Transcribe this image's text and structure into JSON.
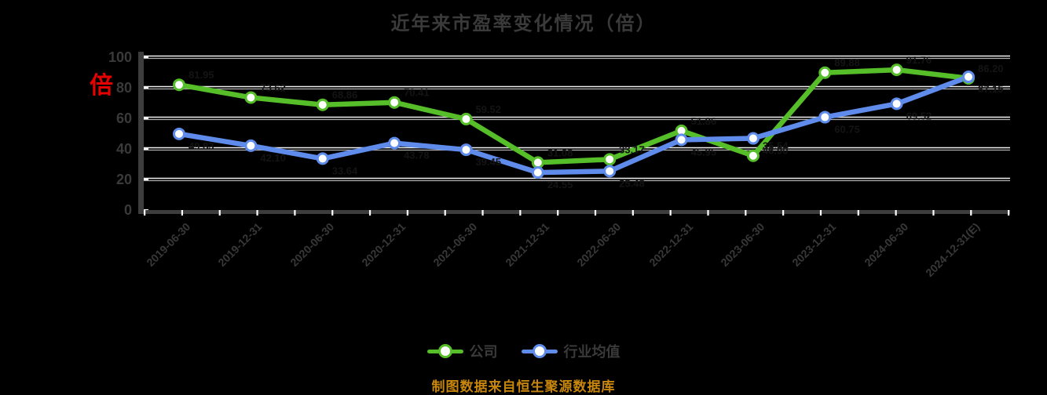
{
  "chart_data": {
    "type": "line",
    "title": "近年来市盈率变化情况（倍）",
    "y_axis_unit_label": "倍",
    "categories": [
      "2019-06-30",
      "2019-12-31",
      "2020-06-30",
      "2020-12-31",
      "2021-06-30",
      "2021-12-31",
      "2022-06-30",
      "2022-12-31",
      "2023-06-30",
      "2023-12-31",
      "2024-06-30",
      "2024-12-31(E)"
    ],
    "series": [
      {
        "name": "公司",
        "color": "#55be28",
        "values": [
          81.95,
          73.62,
          68.86,
          70.41,
          59.52,
          31.08,
          33.17,
          51.86,
          35.54,
          89.88,
          91.76,
          86.2
        ]
      },
      {
        "name": "行业均值",
        "color": "#5f8ceb",
        "values": [
          49.83,
          42.1,
          33.64,
          43.78,
          39.45,
          24.55,
          25.48,
          45.95,
          46.9,
          60.75,
          69.52,
          87.15
        ]
      }
    ],
    "ylim": [
      0,
      100
    ],
    "yticks": [
      0,
      20,
      40,
      60,
      80,
      100
    ],
    "grid": true,
    "legend_position": "bottom",
    "show_point_labels": true
  },
  "footer": {
    "note": "制图数据来自恒生聚源数据库"
  },
  "colors": {
    "background": "#000000",
    "grid_top": "#f0f0f0",
    "grid_bottom": "#b0b0b0",
    "axis": "#3d3d3d",
    "axis_tick": "#ffffff",
    "text": "#3a3a3a",
    "y_unit_red": "#e60000",
    "footer_orange": "#c8860c",
    "marker_fill": "#ffffff",
    "point_label": "#141414"
  }
}
